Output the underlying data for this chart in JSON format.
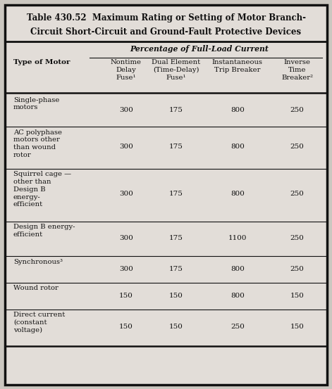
{
  "title_line1": "Table 430.52  Maximum Rating or Setting of Motor Branch-",
  "title_line2": "Circuit Short-Circuit and Ground-Fault Protective Devices",
  "subtitle": "Percentage of Full-Load Current",
  "rows": [
    {
      "motor": "Single-phase\nmotors",
      "nontime": "300",
      "dual": "175",
      "instant": "800",
      "inverse": "250"
    },
    {
      "motor": "AC polyphase\nmotors other\nthan wound\nrotor",
      "nontime": "300",
      "dual": "175",
      "instant": "800",
      "inverse": "250"
    },
    {
      "motor": "Squirrel cage —\nother than\nDesign B\nenergy-\nefficient",
      "nontime": "300",
      "dual": "175",
      "instant": "800",
      "inverse": "250"
    },
    {
      "motor": "Design B energy-\nefficient",
      "nontime": "300",
      "dual": "175",
      "instant": "1100",
      "inverse": "250"
    },
    {
      "motor": "Synchronous³",
      "nontime": "300",
      "dual": "175",
      "instant": "800",
      "inverse": "250"
    },
    {
      "motor": "Wound rotor",
      "nontime": "150",
      "dual": "150",
      "instant": "800",
      "inverse": "150"
    },
    {
      "motor": "Direct current\n(constant\nvoltage)",
      "nontime": "150",
      "dual": "150",
      "instant": "250",
      "inverse": "150"
    }
  ],
  "bg_color": "#cbc7c0",
  "table_bg": "#e2ddd8",
  "border_color": "#111111",
  "text_color": "#111111",
  "figsize": [
    4.71,
    5.53
  ],
  "dpi": 100
}
